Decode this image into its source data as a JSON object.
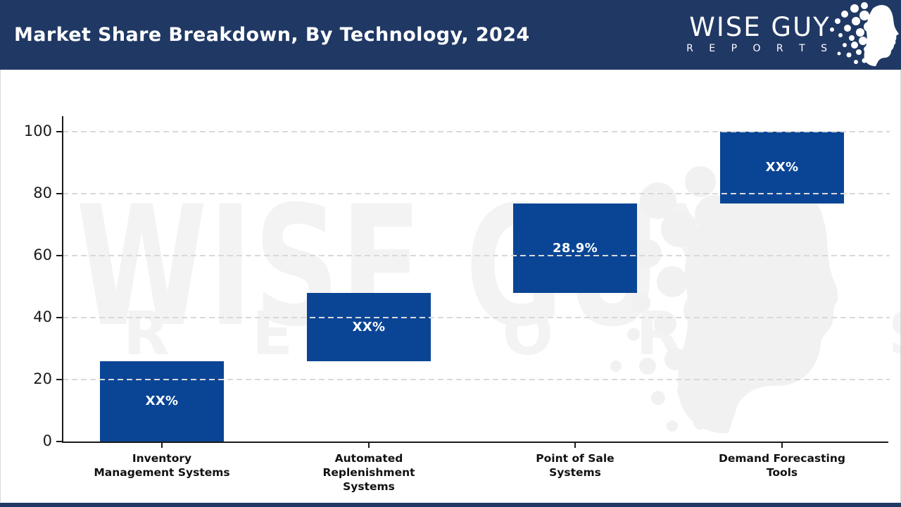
{
  "header": {
    "title": "Market Share Breakdown, By Technology, 2024",
    "logo": {
      "line1": "WISE GUY",
      "line2": "R E P O R T S"
    }
  },
  "watermark": {
    "line1": "WISE GUY",
    "line2": "R E P O R T S"
  },
  "chart_data": {
    "type": "bar",
    "subtype": "waterfall-floating-bars",
    "title": "Market Share Breakdown, By Technology, 2024",
    "categories": [
      "Inventory Management Systems",
      "Automated Replenishment Systems",
      "Point of Sale Systems",
      "Demand Forecasting Tools"
    ],
    "category_label_lines": [
      [
        "Inventory",
        "Management Systems"
      ],
      [
        "Automated",
        "Replenishment",
        "Systems"
      ],
      [
        "Point of Sale",
        "Systems"
      ],
      [
        "Demand Forecasting",
        "Tools"
      ]
    ],
    "series": [
      {
        "name": "Market share (%)",
        "segments": [
          {
            "category": "Inventory Management Systems",
            "start": 0,
            "end": 26,
            "label": "XX%"
          },
          {
            "category": "Automated Replenishment Systems",
            "start": 26,
            "end": 48,
            "label": "XX%"
          },
          {
            "category": "Point of Sale Systems",
            "start": 48,
            "end": 76.9,
            "label": "28.9%"
          },
          {
            "category": "Demand Forecasting Tools",
            "start": 76.9,
            "end": 100,
            "label": "XX%"
          }
        ]
      }
    ],
    "ylim": [
      0,
      100
    ],
    "yticks": [
      0,
      20,
      40,
      60,
      80,
      100
    ],
    "xlabel": "",
    "ylabel": "",
    "grid": "horizontal-dashed-over-bars",
    "legend": "none",
    "bar_color": "#0a4595",
    "bar_label_color": "#ffffff"
  },
  "colors": {
    "header_bg": "#203864",
    "footer_bg": "#203864",
    "bar": "#0a4595",
    "grid": "#d9d9d9",
    "axis": "#1a1a1a",
    "watermark": "#f3f3f3"
  }
}
